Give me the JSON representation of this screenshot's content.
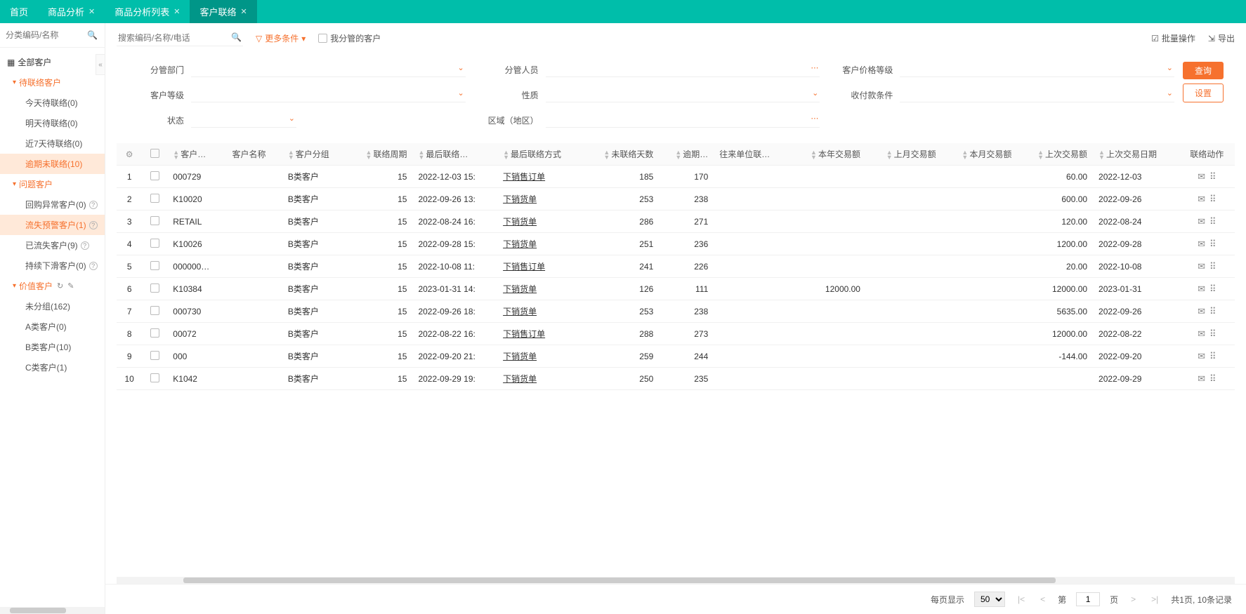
{
  "tabs": [
    {
      "label": "首页",
      "closable": false,
      "active": false
    },
    {
      "label": "商品分析",
      "closable": true,
      "active": false
    },
    {
      "label": "商品分析列表",
      "closable": true,
      "active": false
    },
    {
      "label": "客户联络",
      "closable": true,
      "active": true
    }
  ],
  "sidebar": {
    "search_placeholder": "分类编码/名称",
    "root_label": "全部客户",
    "groups": [
      {
        "label": "待联络客户",
        "items": [
          {
            "label": "今天待联络(0)",
            "selected": false
          },
          {
            "label": "明天待联络(0)",
            "selected": false
          },
          {
            "label": "近7天待联络(0)",
            "selected": false
          },
          {
            "label": "逾期未联络(10)",
            "selected": true
          }
        ]
      },
      {
        "label": "问题客户",
        "items": [
          {
            "label": "回购异常客户(0)",
            "selected": false,
            "help": true
          },
          {
            "label": "流失预警客户(1)",
            "selected": true,
            "help": true
          },
          {
            "label": "已流失客户(9)",
            "selected": false,
            "help": true
          },
          {
            "label": "持续下滑客户(0)",
            "selected": false,
            "help": true
          }
        ]
      },
      {
        "label": "价值客户",
        "extra_icons": true,
        "items": [
          {
            "label": "未分组(162)",
            "selected": false
          },
          {
            "label": "A类客户(0)",
            "selected": false
          },
          {
            "label": "B类客户(10)",
            "selected": false
          },
          {
            "label": "C类客户(1)",
            "selected": false
          }
        ]
      }
    ]
  },
  "toolbar": {
    "search_placeholder": "搜索编码/名称/电话",
    "more_filter": "更多条件",
    "my_customers": "我分管的客户",
    "batch_action": "批量操作",
    "export": "导出"
  },
  "filters": {
    "f1": "分管部门",
    "f2": "分管人员",
    "f3": "客户价格等级",
    "f4": "客户等级",
    "f5": "性质",
    "f6": "收付款条件",
    "f7": "状态",
    "f8": "区域（地区）",
    "btn_query": "查询",
    "btn_setup": "设置"
  },
  "columns": {
    "idx": "",
    "chk": "",
    "code": "客户…",
    "name": "客户名称",
    "group": "客户分组",
    "cycle": "联络周期",
    "last_time": "最后联络…",
    "last_method": "最后联络方式",
    "days_no_contact": "未联络天数",
    "overdue": "逾期…",
    "partner_contact": "往来单位联…",
    "year_amt": "本年交易额",
    "last_month_amt": "上月交易额",
    "this_month_amt": "本月交易额",
    "last_trade_amt": "上次交易额",
    "last_trade_date": "上次交易日期",
    "actions": "联络动作"
  },
  "rows": [
    {
      "idx": "1",
      "code": "000729",
      "name": "",
      "group": "B类客户",
      "cycle": "15",
      "last_time": "2022-12-03 15:",
      "method": "下销售订单",
      "days": "185",
      "overdue": "170",
      "partner": "",
      "year": "",
      "lastm": "",
      "thism": "",
      "last_amt": "60.00",
      "last_date": "2022-12-03"
    },
    {
      "idx": "2",
      "code": "K10020",
      "name": "",
      "group": "B类客户",
      "cycle": "15",
      "last_time": "2022-09-26 13:",
      "method": "下销货单",
      "days": "253",
      "overdue": "238",
      "partner": "",
      "year": "",
      "lastm": "",
      "thism": "",
      "last_amt": "600.00",
      "last_date": "2022-09-26"
    },
    {
      "idx": "3",
      "code": "RETAIL",
      "name": "",
      "group": "B类客户",
      "cycle": "15",
      "last_time": "2022-08-24 16:",
      "method": "下销货单",
      "days": "286",
      "overdue": "271",
      "partner": "",
      "year": "",
      "lastm": "",
      "thism": "",
      "last_amt": "120.00",
      "last_date": "2022-08-24"
    },
    {
      "idx": "4",
      "code": "K10026",
      "name": "",
      "group": "B类客户",
      "cycle": "15",
      "last_time": "2022-09-28 15:",
      "method": "下销货单",
      "days": "251",
      "overdue": "236",
      "partner": "",
      "year": "",
      "lastm": "",
      "thism": "",
      "last_amt": "1200.00",
      "last_date": "2022-09-28"
    },
    {
      "idx": "5",
      "code": "000000…",
      "name": "",
      "group": "B类客户",
      "cycle": "15",
      "last_time": "2022-10-08 11:",
      "method": "下销售订单",
      "days": "241",
      "overdue": "226",
      "partner": "",
      "year": "",
      "lastm": "",
      "thism": "",
      "last_amt": "20.00",
      "last_date": "2022-10-08"
    },
    {
      "idx": "6",
      "code": "K10384",
      "name": "",
      "group": "B类客户",
      "cycle": "15",
      "last_time": "2023-01-31 14:",
      "method": "下销货单",
      "days": "126",
      "overdue": "111",
      "partner": "",
      "year": "12000.00",
      "lastm": "",
      "thism": "",
      "last_amt": "12000.00",
      "last_date": "2023-01-31"
    },
    {
      "idx": "7",
      "code": "000730",
      "name": "",
      "group": "B类客户",
      "cycle": "15",
      "last_time": "2022-09-26 18:",
      "method": "下销货单",
      "days": "253",
      "overdue": "238",
      "partner": "",
      "year": "",
      "lastm": "",
      "thism": "",
      "last_amt": "5635.00",
      "last_date": "2022-09-26"
    },
    {
      "idx": "8",
      "code": "00072",
      "name": "",
      "group": "B类客户",
      "cycle": "15",
      "last_time": "2022-08-22 16:",
      "method": "下销售订单",
      "days": "288",
      "overdue": "273",
      "partner": "",
      "year": "",
      "lastm": "",
      "thism": "",
      "last_amt": "12000.00",
      "last_date": "2022-08-22"
    },
    {
      "idx": "9",
      "code": "000",
      "name": "",
      "group": "B类客户",
      "cycle": "15",
      "last_time": "2022-09-20 21:",
      "method": "下销货单",
      "days": "259",
      "overdue": "244",
      "partner": "",
      "year": "",
      "lastm": "",
      "thism": "",
      "last_amt": "-144.00",
      "last_date": "2022-09-20"
    },
    {
      "idx": "10",
      "code": "K1042",
      "name": "",
      "group": "B类客户",
      "cycle": "15",
      "last_time": "2022-09-29 19:",
      "method": "下销货单",
      "days": "250",
      "overdue": "235",
      "partner": "",
      "year": "",
      "lastm": "",
      "thism": "",
      "last_amt": "",
      "last_date": "2022-09-29"
    }
  ],
  "pager": {
    "per_page_label": "每页显示",
    "per_page_value": "50",
    "page_prefix": "第",
    "page_value": "1",
    "page_suffix": "页",
    "summary": "共1页, 10条记录"
  },
  "colors": {
    "brand": "#00beaa",
    "brand_dark": "#009688",
    "accent": "#f6712e"
  }
}
